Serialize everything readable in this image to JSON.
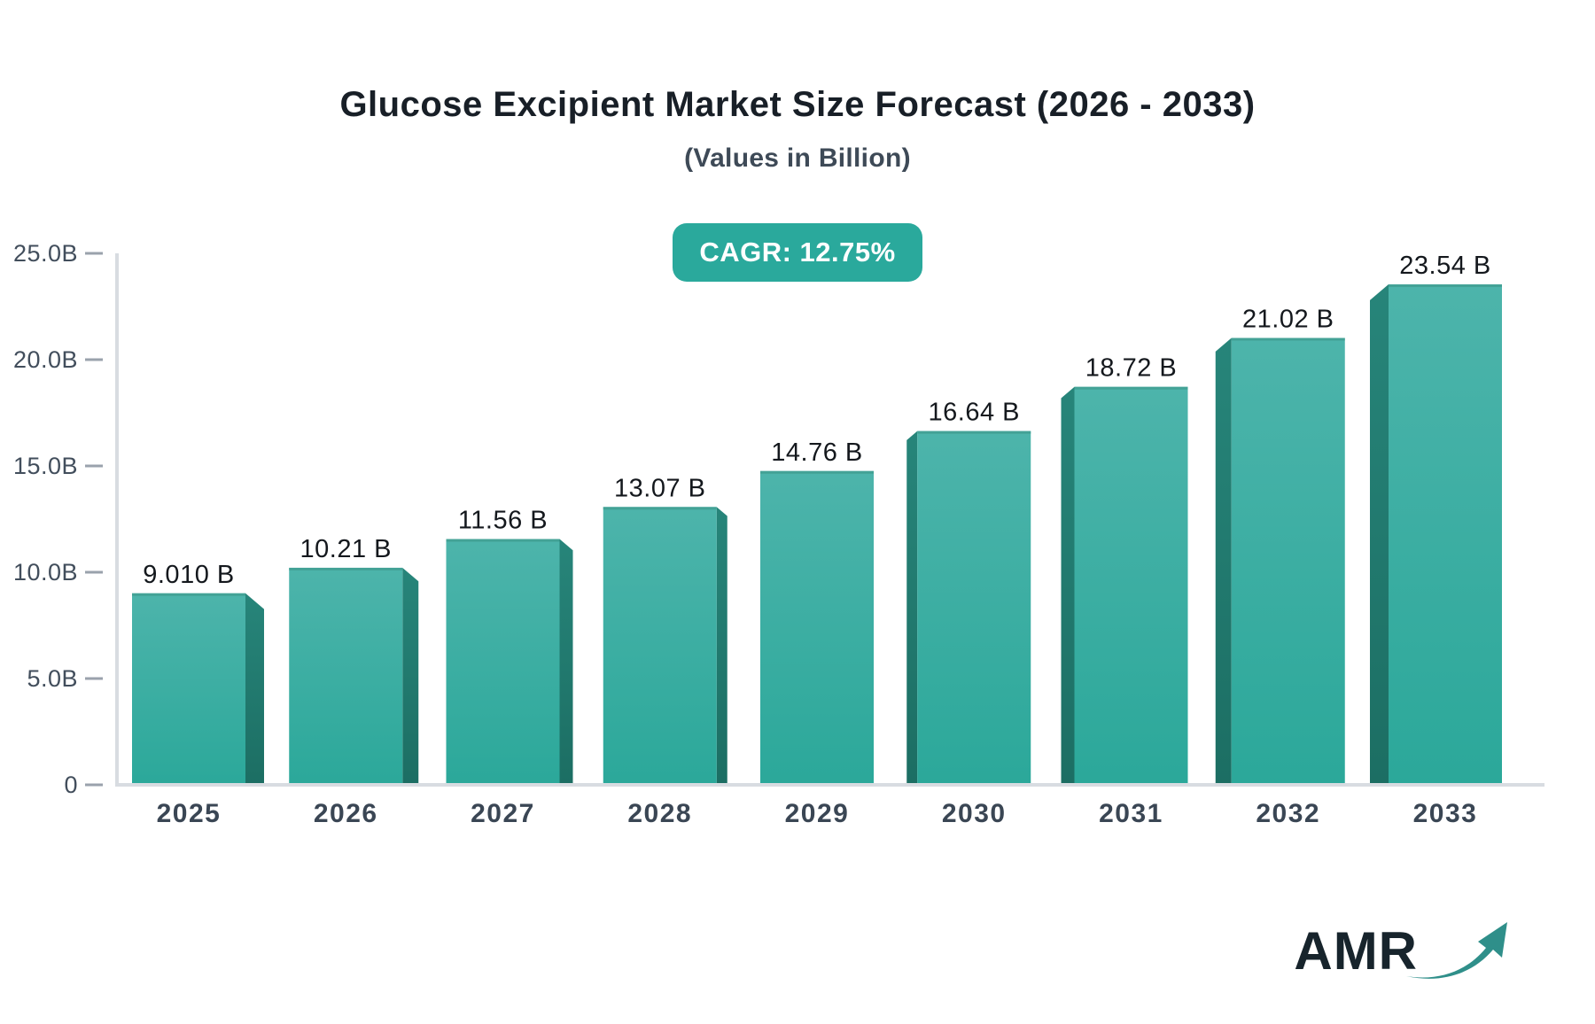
{
  "header": {
    "title": "Glucose Excipient Market Size Forecast (2026 - 2033)",
    "subtitle": "(Values in Billion)",
    "cagr_badge": "CAGR: 12.75%"
  },
  "chart_data": {
    "type": "bar",
    "title": "Glucose Excipient Market Size Forecast (2026 - 2033)",
    "subtitle": "(Values in Billion)",
    "cagr_label": "CAGR: 12.75%",
    "categories": [
      "2025",
      "2026",
      "2027",
      "2028",
      "2029",
      "2030",
      "2031",
      "2032",
      "2033"
    ],
    "values": [
      9.01,
      10.21,
      11.56,
      13.07,
      14.76,
      16.64,
      18.72,
      21.02,
      23.54
    ],
    "value_labels": [
      "9.010 B",
      "10.21 B",
      "11.56 B",
      "13.07 B",
      "14.76 B",
      "16.64 B",
      "18.72 B",
      "21.02 B",
      "23.54 B"
    ],
    "xlabel": "",
    "ylabel": "",
    "ylim": [
      0,
      25
    ],
    "yticks": [
      {
        "value": 0,
        "label": "0"
      },
      {
        "value": 5,
        "label": "5.0B"
      },
      {
        "value": 10,
        "label": "10.0B"
      },
      {
        "value": 15,
        "label": "15.0B"
      },
      {
        "value": 20,
        "label": "20.0B"
      },
      {
        "value": 25,
        "label": "25.0B"
      }
    ],
    "grid": false,
    "legend": "none",
    "bar_style": "3d-extruded",
    "colors": {
      "bar_face_top": "#4db4ab",
      "bar_face_bottom": "#2ba89a",
      "bar_side_top": "#27857a",
      "bar_side_bottom": "#1c6e63",
      "bar_top_edge": "#42a094",
      "axis_line": "#d8dce1",
      "tick_mark": "#9aa2ac",
      "y_label": "#424e5c",
      "x_label": "#3a4654",
      "value_label": "#14181d",
      "badge_bg": "#2aa99c",
      "badge_text": "#ffffff"
    }
  },
  "logo": {
    "text": "AMR",
    "arrow_color": "#2f8f8a",
    "text_color": "#17242c"
  }
}
